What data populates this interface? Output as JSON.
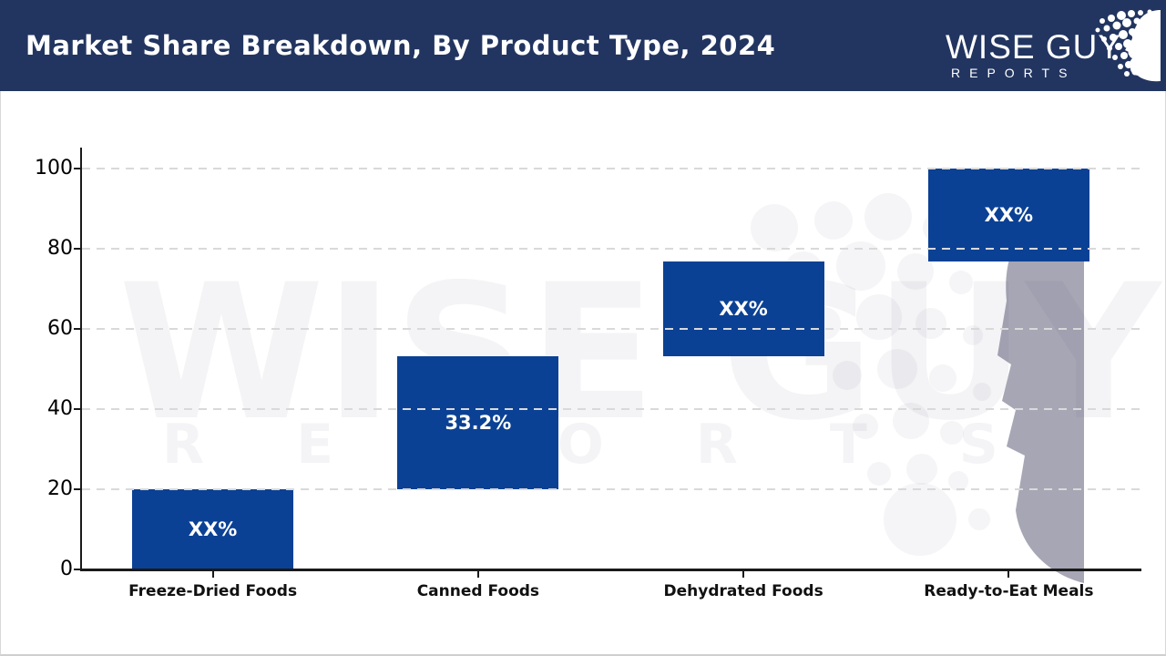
{
  "header": {
    "title": "Market Share Breakdown, By Product Type, 2024",
    "bg_color": "#223560",
    "logo": {
      "line1": "WISE GUY",
      "line2": "R E P O R T S"
    }
  },
  "watermark": {
    "line1": "WISE GUY",
    "line2": "R E P O R T S"
  },
  "chart_data": {
    "type": "bar",
    "subtype": "waterfall-floating-bars",
    "title": "Market Share Breakdown, By Product Type, 2024",
    "categories": [
      "Freeze-Dried Foods",
      "Canned Foods",
      "Dehydrated Foods",
      "Ready-to-Eat Meals"
    ],
    "bars": [
      {
        "category": "Freeze-Dried Foods",
        "start": 0,
        "end": 20,
        "value_label": "XX%"
      },
      {
        "category": "Canned Foods",
        "start": 20,
        "end": 53.2,
        "value_label": "33.2%"
      },
      {
        "category": "Dehydrated Foods",
        "start": 53.2,
        "end": 76.7,
        "value_label": "XX%"
      },
      {
        "category": "Ready-to-Eat Meals",
        "start": 76.7,
        "end": 100,
        "value_label": "XX%"
      }
    ],
    "ylim": [
      0,
      100
    ],
    "yticks": [
      0,
      20,
      40,
      60,
      80,
      100
    ],
    "xlabel": "",
    "ylabel": "",
    "grid": "horizontal-dashed-over-bars",
    "legend": "none",
    "colors": {
      "bar": "#0b4194",
      "bar_label": "#ffffff",
      "gridline": "#d9d9d9",
      "axis": "#1a1a1a",
      "tick_label": "#000000"
    }
  }
}
